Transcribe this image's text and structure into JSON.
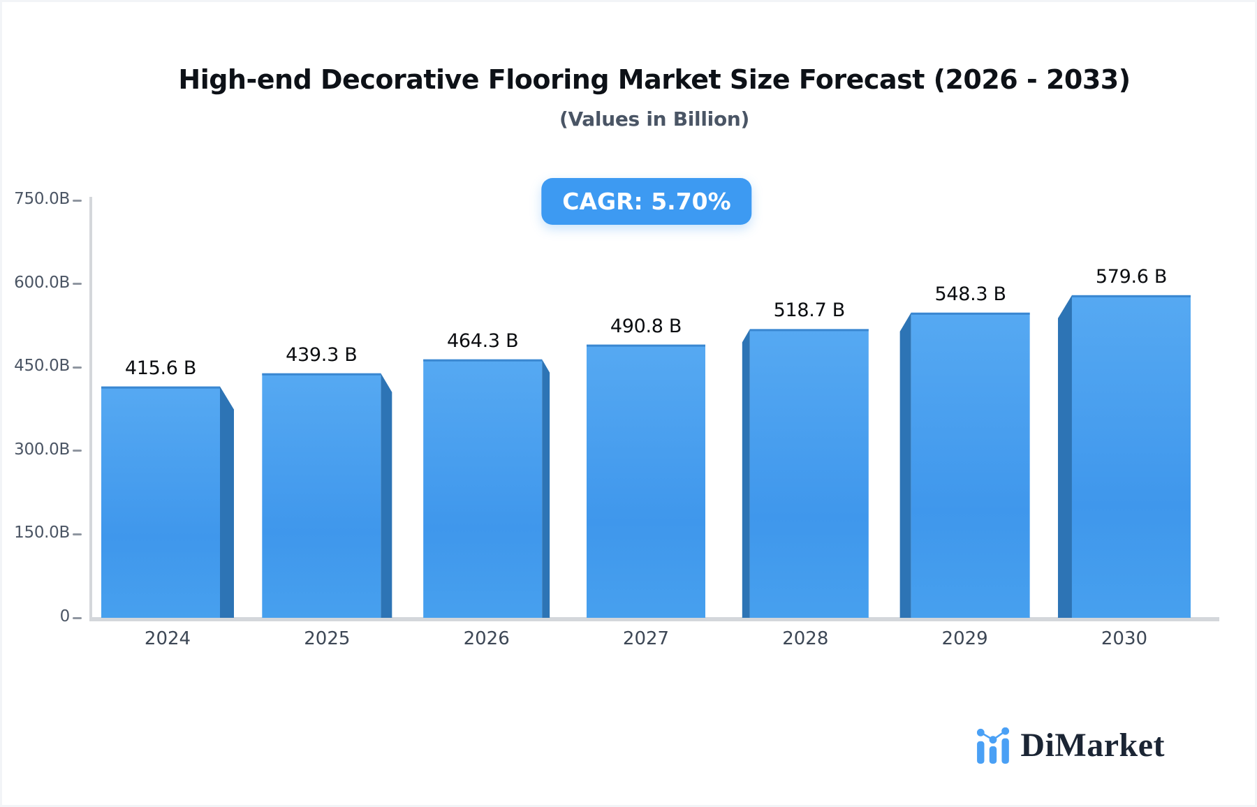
{
  "header": {
    "title": "High-end Decorative Flooring Market Size Forecast (2026 - 2033)",
    "subtitle": "(Values in Billion)"
  },
  "badge": {
    "label": "CAGR: 5.70%"
  },
  "logo": {
    "text": "DiMarket",
    "icon": "bar-line-chart-icon"
  },
  "colors": {
    "accent": "#3d9af2",
    "bar_face_top": "#56a9f2",
    "bar_face_mid": "#3f97ec",
    "bar_face_bottom": "#47a0ee",
    "bar_face_top_edge": "#3a87d1",
    "bar_side": "#2d74b5",
    "axis_line": "#d4d7db",
    "tick_dash": "#8f96a0",
    "title_text": "#0d1117",
    "muted_text": "#4a5565",
    "logo_navy": "#1b2534",
    "logo_blue": "#4aa0f5"
  },
  "chart_data": {
    "type": "bar",
    "title": "High-end Decorative Flooring Market Size Forecast (2026 - 2033)",
    "subtitle": "(Values in Billion)",
    "cagr_label": "CAGR: 5.70%",
    "unit": "Billion",
    "categories": [
      "2024",
      "2025",
      "2026",
      "2027",
      "2028",
      "2029",
      "2030"
    ],
    "values": [
      415.6,
      439.3,
      464.3,
      490.8,
      518.7,
      548.3,
      579.6
    ],
    "value_labels": [
      "415.6 B",
      "439.3 B",
      "464.3 B",
      "490.8 B",
      "518.7 B",
      "548.3 B",
      "579.6 B"
    ],
    "ylim": [
      0,
      750
    ],
    "yticks": [
      {
        "value": 0,
        "label": "0"
      },
      {
        "value": 150,
        "label": "150.0B"
      },
      {
        "value": 300,
        "label": "300.0B"
      },
      {
        "value": 450,
        "label": "450.0B"
      },
      {
        "value": 600,
        "label": "600.0B"
      },
      {
        "value": 750,
        "label": "750.0B"
      }
    ],
    "grid": false,
    "legend": "none",
    "bar_style": "pseudo-3d, center vanishing point, side faces darker blue"
  }
}
